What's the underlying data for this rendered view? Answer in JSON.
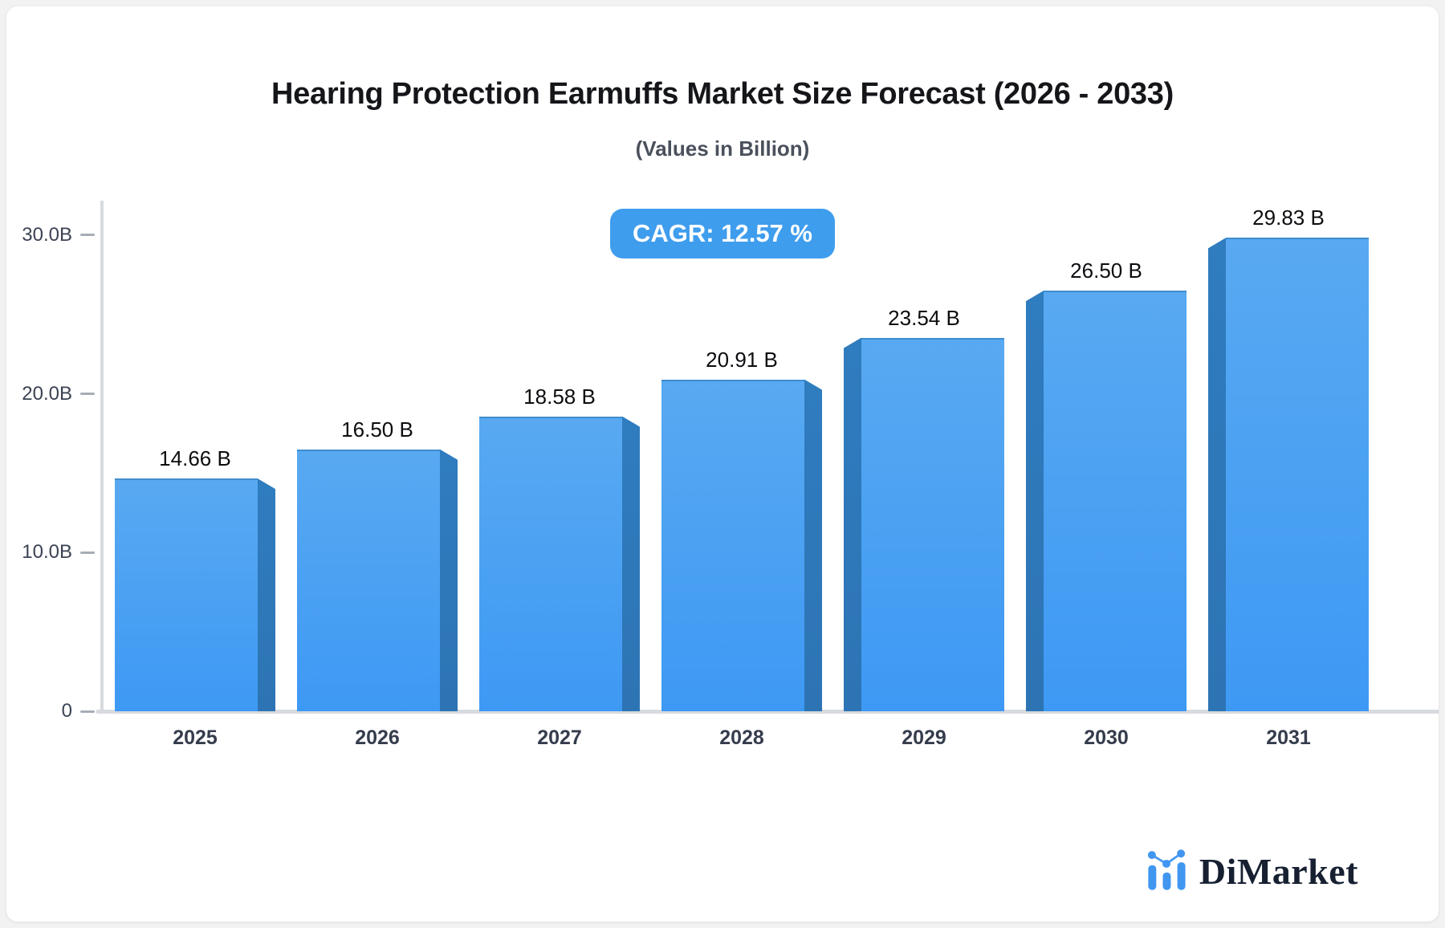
{
  "title": "Hearing Protection Earmuffs Market Size Forecast (2026 - 2033)",
  "subtitle": "(Values in Billion)",
  "badge": {
    "label": "CAGR: 12.57 %"
  },
  "chart_data": {
    "type": "bar",
    "title": "Hearing Protection Earmuffs Market Size Forecast (2026 - 2033)",
    "subtitle": "(Values in Billion)",
    "categories": [
      "2025",
      "2026",
      "2027",
      "2028",
      "2029",
      "2030",
      "2031"
    ],
    "values": [
      14.66,
      16.5,
      18.58,
      20.91,
      23.54,
      26.5,
      29.83
    ],
    "value_labels": [
      "14.66 B",
      "16.50 B",
      "18.58 B",
      "20.91 B",
      "23.54 B",
      "26.50 B",
      "29.83 B"
    ],
    "yticks": [
      {
        "label": "30.0B",
        "value": 30
      },
      {
        "label": "20.0B",
        "value": 20
      },
      {
        "label": "10.0B",
        "value": 10
      },
      {
        "label": "0",
        "value": 0
      }
    ],
    "ylim": [
      0,
      30
    ],
    "xlabel": "",
    "ylabel": "",
    "grid": false,
    "legend": false,
    "cagr": "12.57 %",
    "colors": {
      "bar_gradient_top": "#58a9f1",
      "bar_gradient_bottom": "#3e99f4",
      "bar_side_face": "#2d74b4",
      "badge_background": "#3f9ded",
      "axis_line": "#d7dade",
      "tick_mark": "#a7adb6",
      "label_text": "#0c0d10"
    }
  },
  "logo": {
    "text": "DiMarket",
    "icon": "dimarket-logo-icon",
    "icon_color": "#4196f0"
  }
}
